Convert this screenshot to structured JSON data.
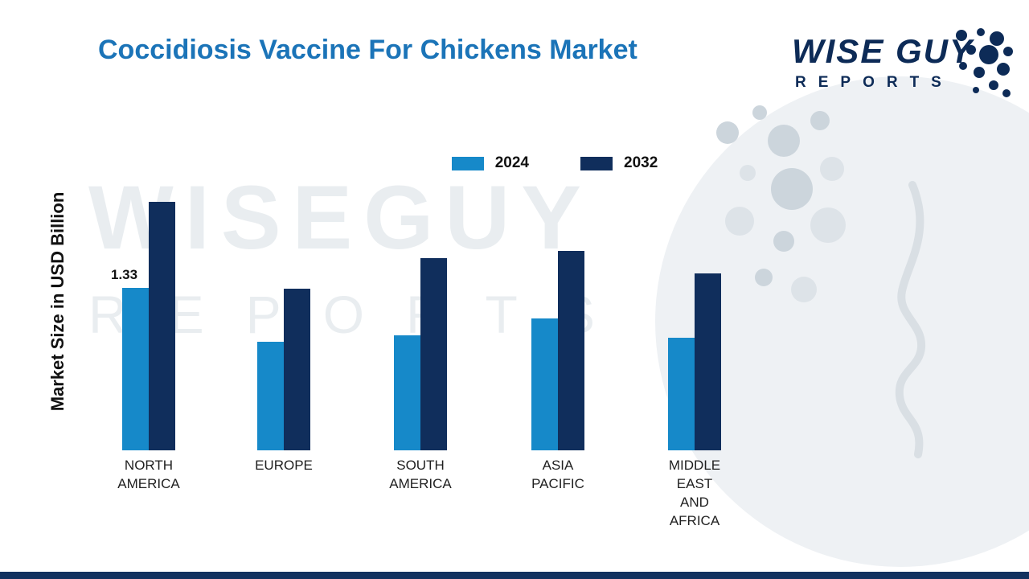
{
  "page": {
    "title": "Coccidiosis Vaccine For Chickens Market"
  },
  "logo": {
    "line1": "WISE GUY",
    "line2": "REPORTS"
  },
  "watermark": {
    "line1": "WISEGUY",
    "line2": "REPORTS"
  },
  "colors": {
    "title_blue": "#1b74b8",
    "series_2024": "#1689c9",
    "series_2032": "#102e5c",
    "bottom_strip": "#12315f",
    "watermark_gray": "#e9edf0"
  },
  "chart_data": {
    "type": "bar",
    "title": "Coccidiosis Vaccine For Chickens Market",
    "ylabel": "Market Size in USD Billion",
    "xlabel": "",
    "categories": [
      "NORTH AMERICA",
      "EUROPE",
      "SOUTH AMERICA",
      "ASIA PACIFIC",
      "MIDDLE EAST AND AFRICA"
    ],
    "series": [
      {
        "name": "2024",
        "color": "#1689c9",
        "values": [
          1.33,
          0.89,
          0.94,
          1.08,
          0.92
        ]
      },
      {
        "name": "2032",
        "color": "#102e5c",
        "values": [
          2.03,
          1.32,
          1.57,
          1.63,
          1.45
        ]
      }
    ],
    "annotations": [
      {
        "category": "NORTH AMERICA",
        "series": "2024",
        "text": "1.33"
      }
    ],
    "ylim": [
      0,
      2.2
    ],
    "grid": false,
    "legend_position": "top-center"
  }
}
